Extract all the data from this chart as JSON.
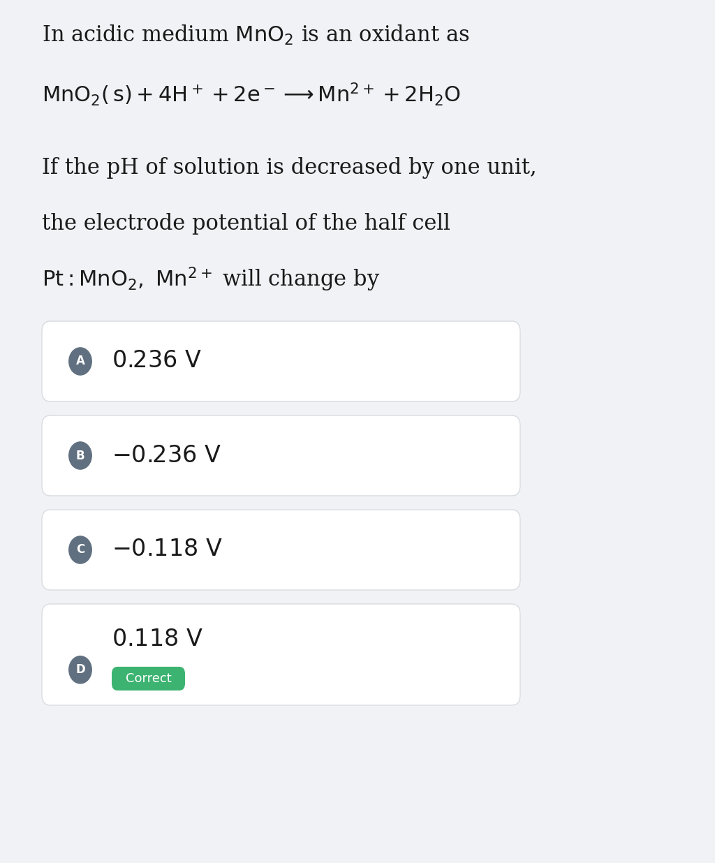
{
  "background_color": "#f0f2f5",
  "card_bg": "#ffffff",
  "card_border": "#d8dce0",
  "text_color": "#1a1a1a",
  "circle_color": "#607080",
  "correct_bg": "#3cb371",
  "correct_text": "#ffffff",
  "question_lines": [
    "In acidic medium $\\mathrm{MnO_2}$ is an oxidant as",
    "$\\mathrm{MnO_2(\\,s) + 4H^+ + 2e^- \\longrightarrow Mn^{2+} + 2H_2O}$",
    "If the pH of solution is decreased by one unit,",
    "the electrode potential of the half cell",
    "$\\mathrm{Pt : MnO_2,\\ Mn^{2+}}$ will change by"
  ],
  "options": [
    {
      "label": "A",
      "text": "$0.236\\ \\mathrm{V}$",
      "correct": false
    },
    {
      "label": "B",
      "text": "$-0.236\\ \\mathrm{V}$",
      "correct": false
    },
    {
      "label": "C",
      "text": "$-0.118\\ \\mathrm{V}$",
      "correct": false
    },
    {
      "label": "D",
      "text": "$0.118\\ \\mathrm{V}$",
      "correct": true
    }
  ],
  "fig_width": 10.24,
  "fig_height": 12.36,
  "dpi": 100
}
